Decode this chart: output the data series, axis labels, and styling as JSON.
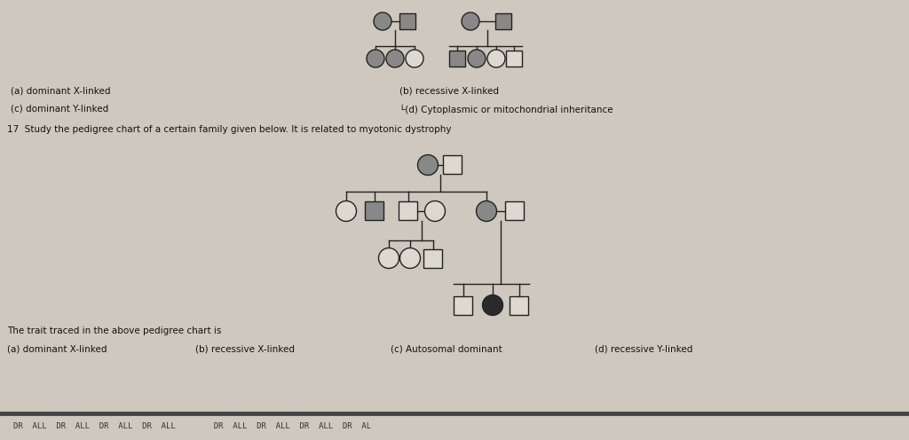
{
  "bg_color": "#cec8be",
  "text_color": "#111111",
  "title_q16a": "(a) dominant X-linked",
  "title_q16b": "(b) recessive X-linked",
  "title_q16c": "(c) dominant Y-linked",
  "title_q16d": "(d) Cytoplasmic or mitochondrial inheritance",
  "q17_text": "17  Study the pedigree chart of a certain family given below. It is related to myotonic dystrophy",
  "footer_text": "The trait traced in the above pedigree chart is",
  "footer_a": "(a) dominant X-linked",
  "footer_b": "(b) recessive X-linked",
  "footer_c": "(c) Autosomal dominant",
  "footer_d": "(d) recessive Y-linked"
}
